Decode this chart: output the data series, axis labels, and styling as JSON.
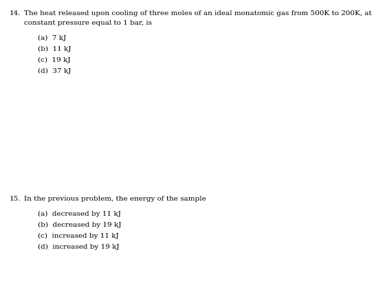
{
  "background_color": "#ffffff",
  "text_color": "#000000",
  "font_family": "serif",
  "font_size": 7.5,
  "q14_number": "14.",
  "q14_text_line1": "The heat released upon cooling of three moles of an ideal monatomic gas from 500K to 200K, at",
  "q14_text_line2": "constant pressure equal to 1 bar, is",
  "q14_options": [
    "(a)  7 kJ",
    "(b)  11 kJ",
    "(c)  19 kJ",
    "(d)  37 kJ"
  ],
  "q15_number": "15.",
  "q15_text_line1": "In the previous problem, the energy of the sample",
  "q15_options": [
    "(a)  decreased by 11 kJ",
    "(b)  decreased by 19 kJ",
    "(c)  increased by 11 kJ",
    "(d)  increased by 19 kJ"
  ]
}
